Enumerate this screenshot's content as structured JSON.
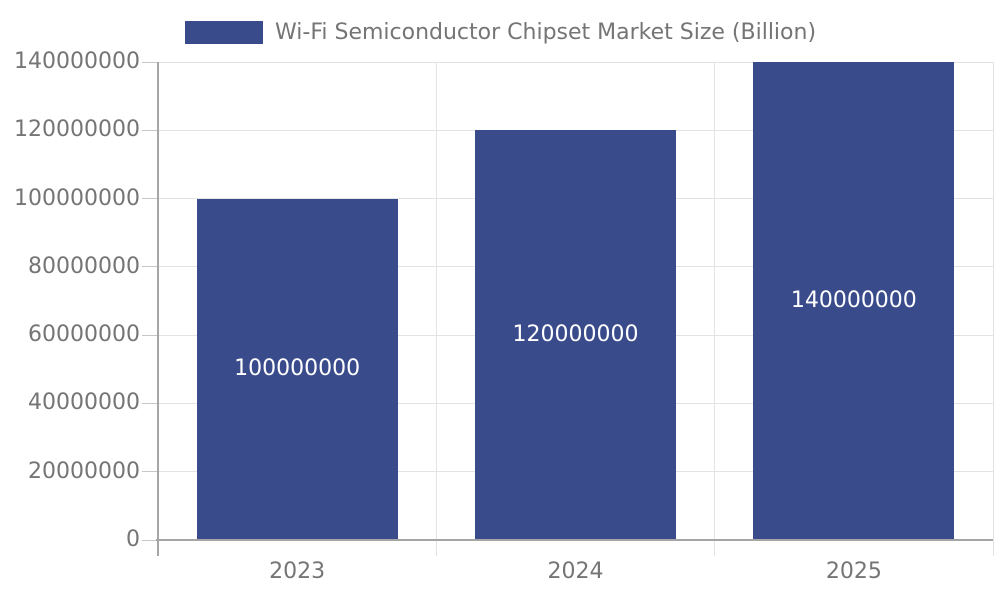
{
  "chart_data": {
    "type": "bar",
    "title": "",
    "series_name": "Wi-Fi Semiconductor Chipset Market Size (Billion)",
    "legend_position": "top",
    "categories": [
      "2023",
      "2024",
      "2025"
    ],
    "values": [
      100000000,
      120000000,
      140000000
    ],
    "bar_value_labels": [
      "100000000",
      "120000000",
      "140000000"
    ],
    "xlabel": "",
    "ylabel": "",
    "ylim": [
      0,
      140000000
    ],
    "ytick_step": 20000000,
    "yticks": [
      0,
      20000000,
      40000000,
      60000000,
      80000000,
      100000000,
      120000000,
      140000000
    ],
    "ytick_labels": [
      "0",
      "20000000",
      "40000000",
      "60000000",
      "80000000",
      "100000000",
      "120000000",
      "140000000"
    ],
    "grid": true,
    "colors": {
      "bar": "#3a4b8c",
      "grid": "#e3e3e3",
      "axis": "#a5a5a5",
      "tick_dash": "#c6c6c6",
      "text": "#757575",
      "bar_label": "#ffffff",
      "background": "#ffffff"
    }
  }
}
